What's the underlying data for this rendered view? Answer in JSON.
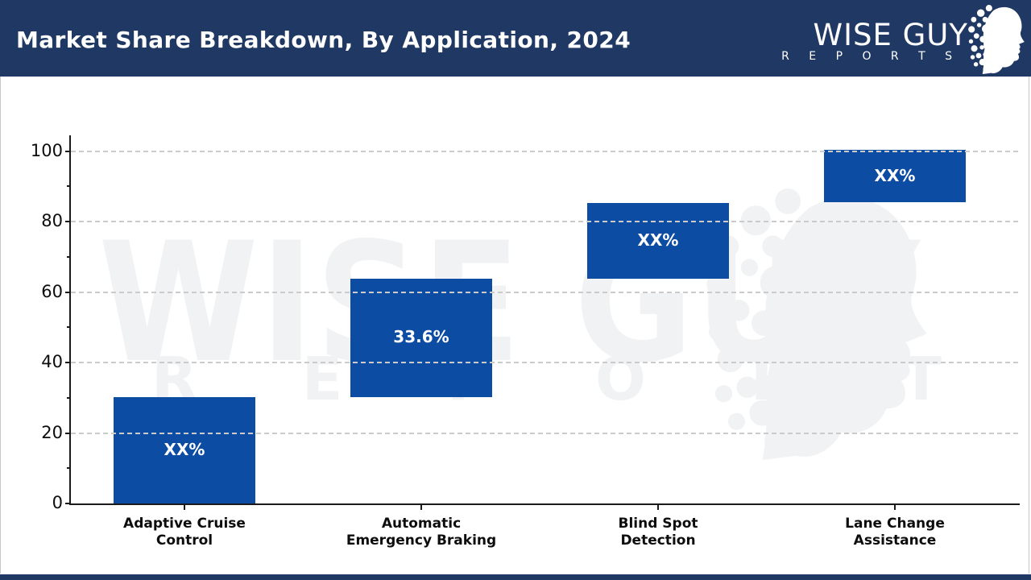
{
  "header": {
    "title": "Market Share Breakdown, By Application, 2024",
    "background_color": "#203864",
    "logo": {
      "line1": "WISE GUY",
      "line2": "R E P O R T S"
    }
  },
  "watermark": {
    "line1": "WISE GUY",
    "line2": "R E P O R T S",
    "color": "#f1f2f4"
  },
  "footer": {
    "color": "#203864"
  },
  "chart_data": {
    "type": "bar",
    "subtype": "floating-waterfall",
    "title": "Market Share Breakdown, By Application, 2024",
    "categories": [
      "Adaptive Cruise Control",
      "Automatic Emergency Braking",
      "Blind Spot Detection",
      "Lane Change Assistance"
    ],
    "segments": [
      {
        "category": "Adaptive Cruise Control",
        "label_lines": [
          "Adaptive Cruise",
          "Control"
        ],
        "start": 0,
        "end": 30.2,
        "label": "XX%"
      },
      {
        "category": "Automatic Emergency Braking",
        "label_lines": [
          "Automatic",
          "Emergency Braking"
        ],
        "start": 30.2,
        "end": 63.8,
        "label": "33.6%"
      },
      {
        "category": "Blind Spot Detection",
        "label_lines": [
          "Blind Spot",
          "Detection"
        ],
        "start": 63.8,
        "end": 85.3,
        "label": "XX%"
      },
      {
        "category": "Lane Change Assistance",
        "label_lines": [
          "Lane Change",
          "Assistance"
        ],
        "start": 85.5,
        "end": 100.3,
        "label": "XX%"
      }
    ],
    "ylim": [
      0,
      100
    ],
    "yticks": [
      0,
      20,
      40,
      60,
      80,
      100
    ],
    "minor_yticks": [
      10,
      30,
      50,
      70,
      90
    ],
    "xlabel": "",
    "ylabel": "",
    "grid": "horizontal-dashed",
    "legend": "none",
    "bar_color": "#0c4ca3",
    "bar_label_color": "#ffffff",
    "grid_color": "#cbcbcb",
    "axis_color": "#1a1a1a"
  }
}
